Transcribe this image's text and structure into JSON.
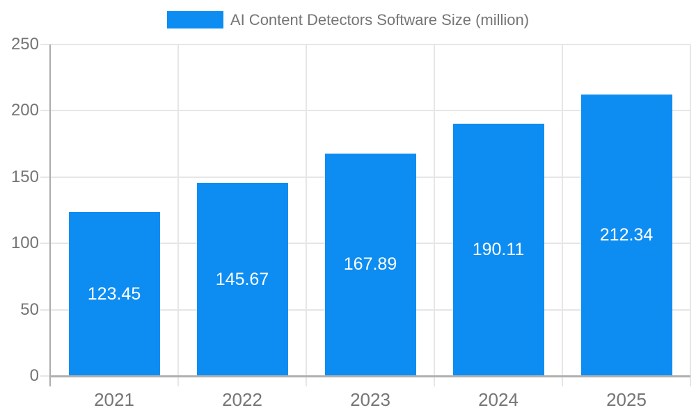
{
  "chart_data": {
    "type": "bar",
    "title": "AI Content Detectors Software Size (million)",
    "categories": [
      "2021",
      "2022",
      "2023",
      "2024",
      "2025"
    ],
    "values": [
      123.45,
      145.67,
      167.89,
      190.11,
      212.34
    ],
    "value_labels": [
      "123.45",
      "145.67",
      "167.89",
      "190.11",
      "212.34"
    ],
    "xlabel": "",
    "ylabel": "",
    "ylim": [
      0,
      250
    ],
    "yticks": [
      0,
      50,
      100,
      150,
      200,
      250
    ],
    "grid": true,
    "legend_position": "top",
    "series_name": "AI Content Detectors Software Size (million)"
  },
  "colors": {
    "bar": "#0d8df2",
    "grid": "#e6e6e6",
    "axis": "#ababab",
    "baseline": "#b0b0b0",
    "text": "#757575",
    "value_label": "#ffffff",
    "background": "#ffffff"
  }
}
